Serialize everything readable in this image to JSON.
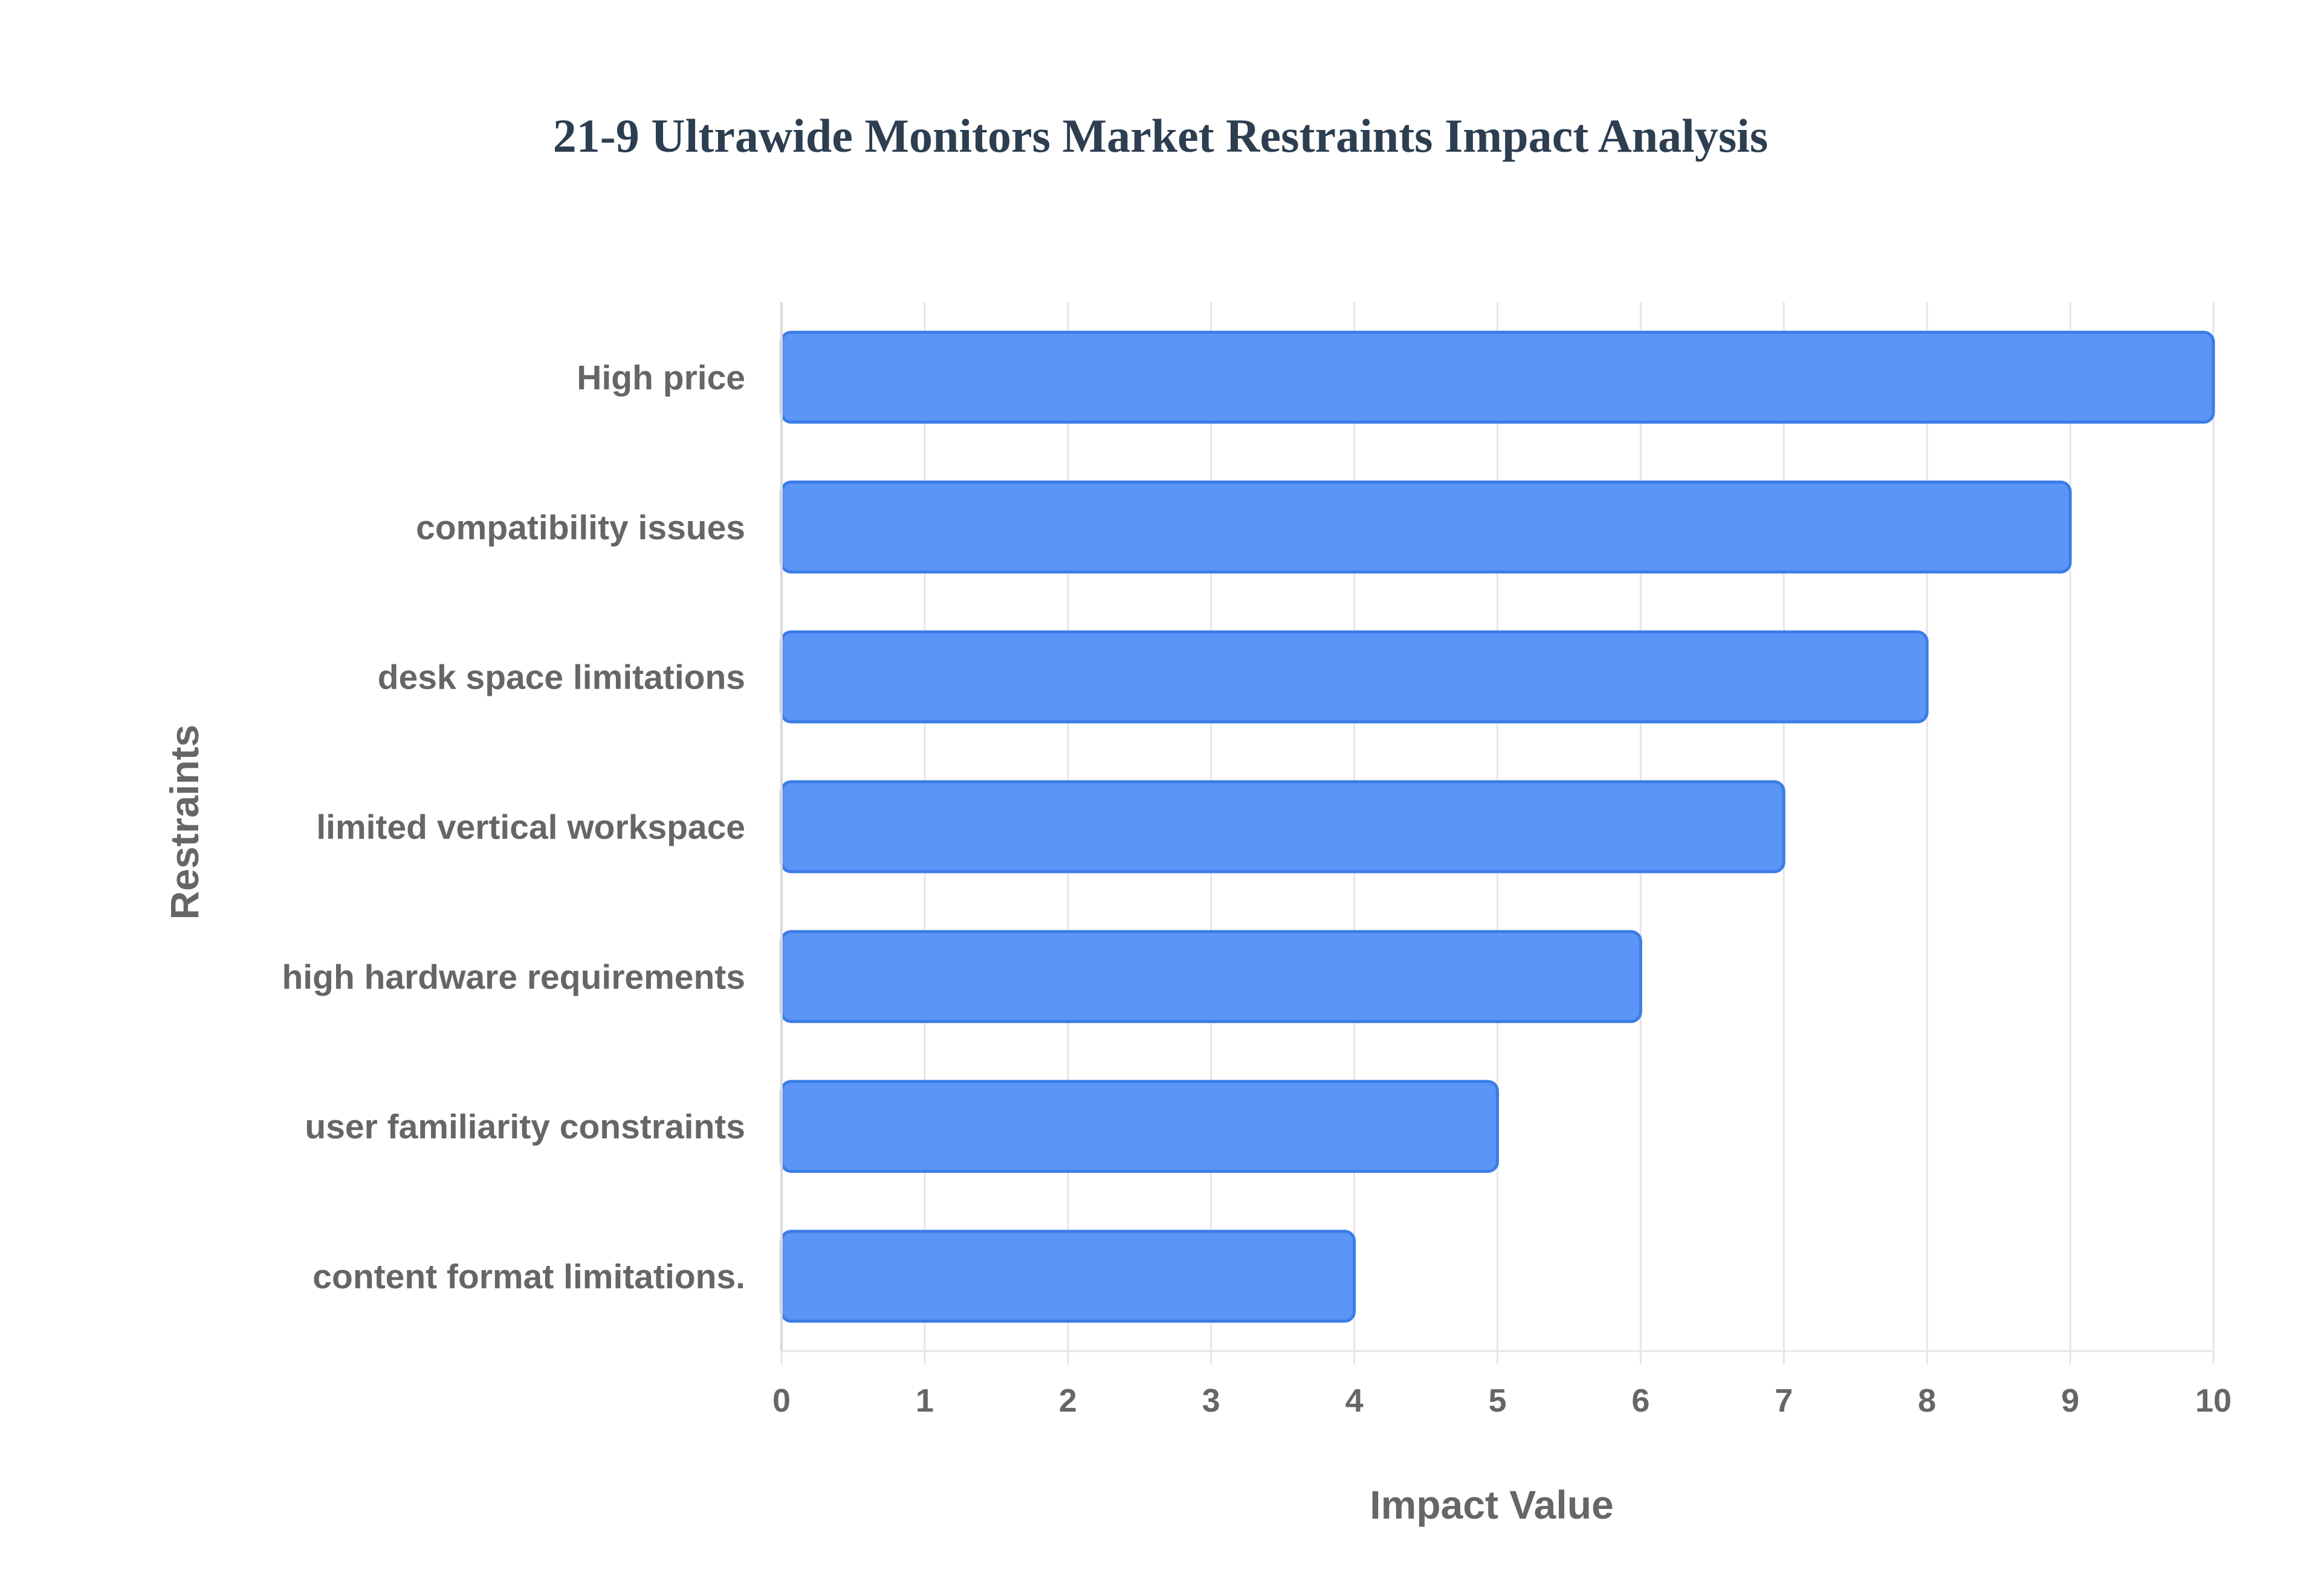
{
  "chart_data": {
    "type": "bar",
    "orientation": "horizontal",
    "title": "21-9 Ultrawide Monitors Market Restraints Impact Analysis",
    "xlabel": "Impact Value",
    "ylabel": "Restraints",
    "categories": [
      "High price",
      "compatibility issues",
      "desk space limitations",
      "limited vertical workspace",
      "high hardware requirements",
      "user familiarity constraints",
      "content format limitations."
    ],
    "values": [
      10,
      9,
      8,
      7,
      6,
      5,
      4
    ],
    "xlim": [
      0,
      10
    ],
    "xticks": [
      "0",
      "1",
      "2",
      "3",
      "4",
      "5",
      "6",
      "7",
      "8",
      "9",
      "10"
    ],
    "grid": true,
    "legend": "none",
    "colors": {
      "bar_fill": "#5b95f5",
      "bar_stroke": "#3b7de8",
      "grid": "#e6e6e6",
      "title": "#2c3e50",
      "text": "#666666"
    }
  }
}
